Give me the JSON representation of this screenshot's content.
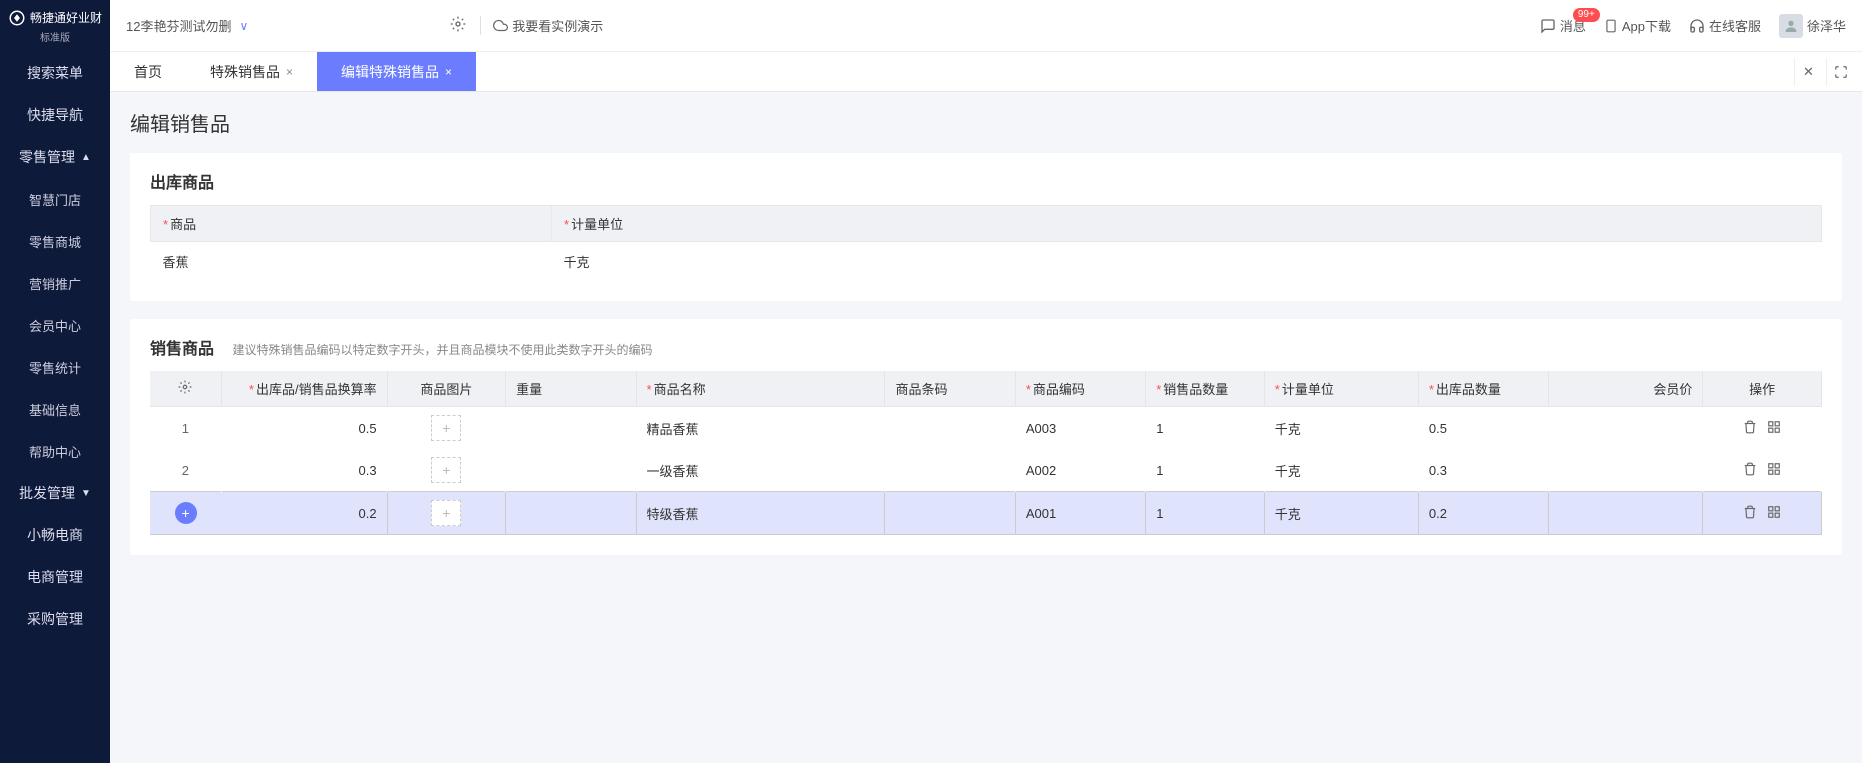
{
  "brand": {
    "name": "畅捷通好业财",
    "edition": "标准版"
  },
  "sidebar": {
    "items": [
      {
        "label": "搜索菜单"
      },
      {
        "label": "快捷导航"
      },
      {
        "label": "零售管理",
        "arrow": "▲"
      },
      {
        "label": "智慧门店",
        "sub": true
      },
      {
        "label": "零售商城",
        "sub": true
      },
      {
        "label": "营销推广",
        "sub": true
      },
      {
        "label": "会员中心",
        "sub": true
      },
      {
        "label": "零售统计",
        "sub": true
      },
      {
        "label": "基础信息",
        "sub": true
      },
      {
        "label": "帮助中心",
        "sub": true
      },
      {
        "label": "批发管理",
        "arrow": "▼"
      },
      {
        "label": "小畅电商"
      },
      {
        "label": "电商管理"
      },
      {
        "label": "采购管理"
      }
    ]
  },
  "topbar": {
    "org": "12李艳芬测试勿删",
    "demo_link": "我要看实例演示",
    "right": {
      "msg": "消息",
      "msg_badge": "99+",
      "app": "App下载",
      "cs": "在线客服",
      "user": "徐泽华"
    }
  },
  "tabs": {
    "items": [
      {
        "label": "首页",
        "closable": false
      },
      {
        "label": "特殊销售品",
        "closable": true
      },
      {
        "label": "编辑特殊销售品",
        "closable": true,
        "active": true
      }
    ]
  },
  "page": {
    "title": "编辑销售品"
  },
  "outbound": {
    "title": "出库商品",
    "cols": {
      "product": "商品",
      "unit": "计量单位"
    },
    "row": {
      "product": "香蕉",
      "unit": "千克"
    }
  },
  "sales": {
    "title": "销售商品",
    "hint": "建议特殊销售品编码以特定数字开头，并且商品模块不使用此类数字开头的编码",
    "cols": {
      "rate": "出库品/销售品换算率",
      "img": "商品图片",
      "weight": "重量",
      "name": "商品名称",
      "barcode": "商品条码",
      "code": "商品编码",
      "sale_qty": "销售品数量",
      "unit": "计量单位",
      "out_qty": "出库品数量",
      "member_price": "会员价",
      "ops": "操作"
    },
    "rows": [
      {
        "idx": "1",
        "rate": "0.5",
        "name": "精品香蕉",
        "code": "A003",
        "sale_qty": "1",
        "unit": "千克",
        "out_qty": "0.5"
      },
      {
        "idx": "2",
        "rate": "0.3",
        "name": "一级香蕉",
        "code": "A002",
        "sale_qty": "1",
        "unit": "千克",
        "out_qty": "0.3"
      },
      {
        "idx": "+",
        "rate": "0.2",
        "name": "特级香蕉",
        "code": "A001",
        "sale_qty": "1",
        "unit": "千克",
        "out_qty": "0.2",
        "active": true
      }
    ]
  }
}
